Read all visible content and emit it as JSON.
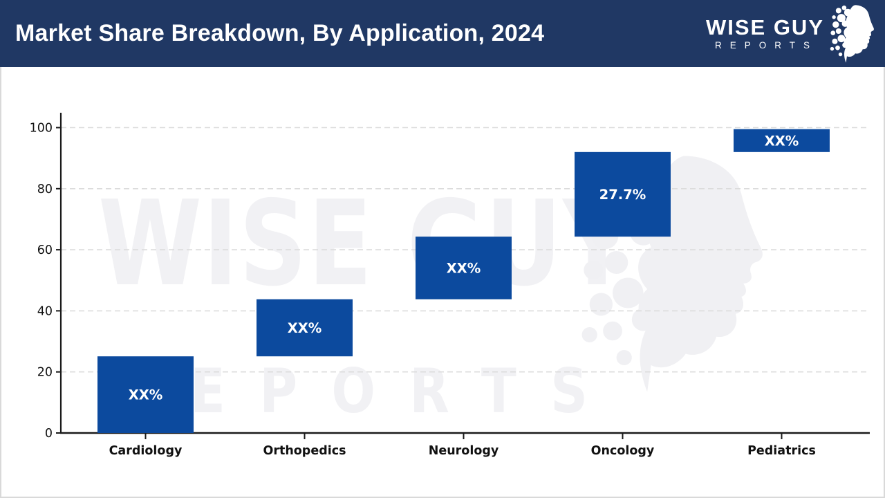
{
  "header": {
    "title": "Market Share Breakdown, By Application, 2024",
    "bg_color": "#203864",
    "logo": {
      "word": "WISE GUY",
      "sub": "REPORTS"
    }
  },
  "watermark": {
    "word": "WISE GUY",
    "sub": "REPORTS"
  },
  "chart_data": {
    "type": "bar",
    "subtype": "floating-segment-waterfall",
    "title": "Market Share Breakdown, By Application, 2024",
    "xlabel": "",
    "ylabel": "",
    "categories": [
      "Cardiology",
      "Orthopedics",
      "Neurology",
      "Oncology",
      "Pediatrics"
    ],
    "segments": [
      {
        "category": "Cardiology",
        "start": 0,
        "end": 25.1,
        "value": 25.1,
        "label": "XX%"
      },
      {
        "category": "Orthopedics",
        "start": 25.1,
        "end": 43.8,
        "value": 18.7,
        "label": "XX%"
      },
      {
        "category": "Neurology",
        "start": 43.8,
        "end": 64.3,
        "value": 20.5,
        "label": "XX%"
      },
      {
        "category": "Oncology",
        "start": 64.3,
        "end": 92.0,
        "value": 27.7,
        "label": "27.7%"
      },
      {
        "category": "Pediatrics",
        "start": 92.0,
        "end": 99.5,
        "value": 7.5,
        "label": "XX%"
      }
    ],
    "y_ticks": [
      0,
      20,
      40,
      60,
      80,
      100
    ],
    "ylim": [
      0,
      105
    ],
    "grid": "horizontal-dashed",
    "legend": "none",
    "bar_color": "#0c4a9e",
    "bar_label_color": "#ffffff",
    "axis_color": "#1a1a1a",
    "gridline_color": "#dcdcdc"
  }
}
